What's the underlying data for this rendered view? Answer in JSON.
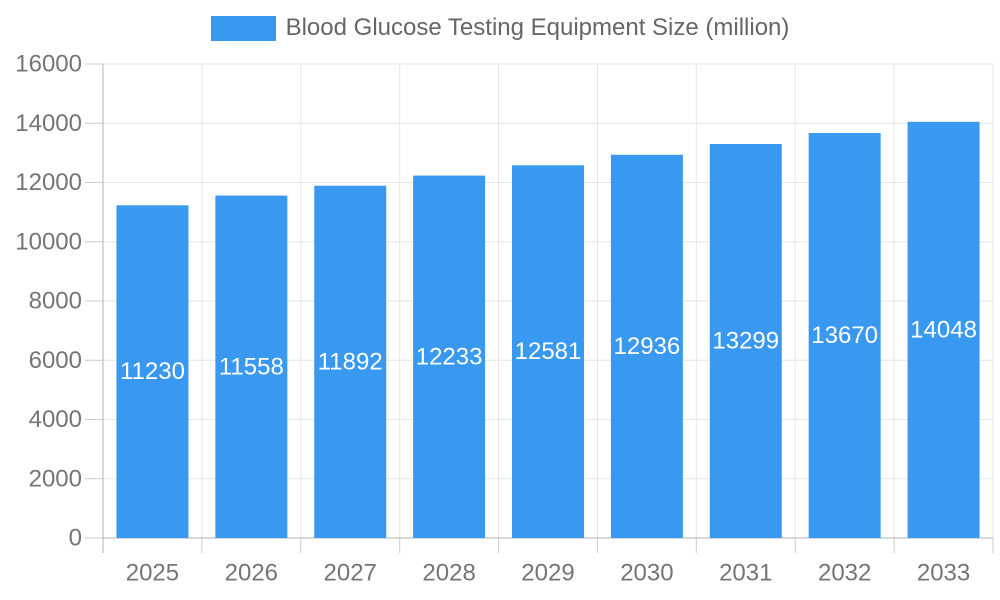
{
  "chart_data": {
    "type": "bar",
    "title": "Blood Glucose Testing Equipment Size (million)",
    "categories": [
      "2025",
      "2026",
      "2027",
      "2028",
      "2029",
      "2030",
      "2031",
      "2032",
      "2033"
    ],
    "values": [
      11230,
      11558,
      11892,
      12233,
      12581,
      12936,
      13299,
      13670,
      14048
    ],
    "xlabel": "",
    "ylabel": "",
    "ylim": [
      0,
      16000
    ],
    "yticks": [
      0,
      2000,
      4000,
      6000,
      8000,
      10000,
      12000,
      14000,
      16000
    ],
    "grid": "both",
    "legend_position": "top-center",
    "bar_labels_position": "inside-center",
    "colors": {
      "bar": "#3999f1",
      "bar_value_label": "#ffffff",
      "axis_line": "#b3b3b3",
      "tick_line": "#cccccc",
      "grid_line": "#e6e6e6",
      "axis_text": "#757575",
      "legend_text": "#666666"
    }
  }
}
